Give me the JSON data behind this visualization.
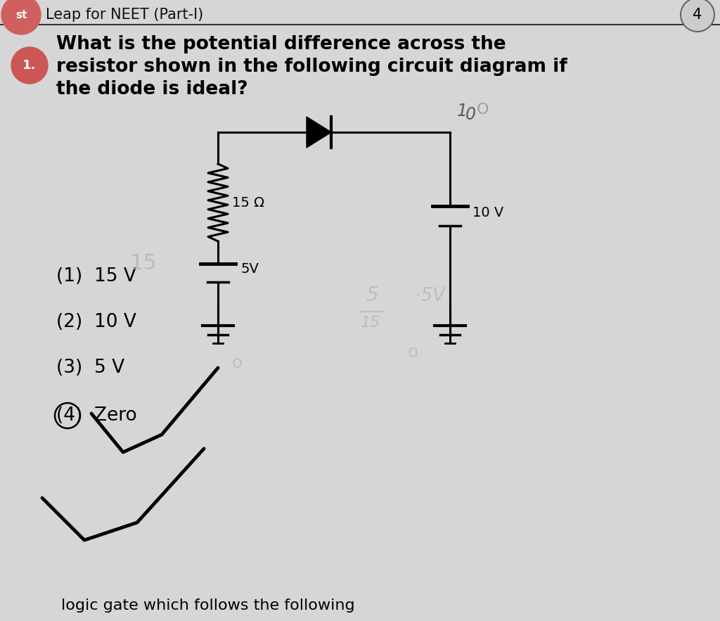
{
  "bg_color": "#d8d8d8",
  "paper_color": "#e8e8e8",
  "header_text": "Leap for NEET (Part-I)",
  "header_prefix": "st",
  "question_text_line1": "What is the potential difference across the",
  "question_text_line2": "resistor shown in the following circuit diagram if",
  "question_text_line3": "the diode is ideal?",
  "answer_number": "4",
  "resistor_label": "15 Ω",
  "battery1_label": "5V",
  "battery2_label": "10 V",
  "annotation_10": "10",
  "handwritten_15": "15",
  "handwritten_o1": "o",
  "handwritten_o2": "o",
  "handwritten_frac": "5\n15",
  "handwritten_5v": "·5V",
  "footer_text": "        logic gate which follows the following",
  "options": [
    "(1)  15 V",
    "(2)  10 V",
    "(3)  5 V",
    "(4)  Zero"
  ],
  "lw_wire": 2.2,
  "lw_component": 2.5
}
